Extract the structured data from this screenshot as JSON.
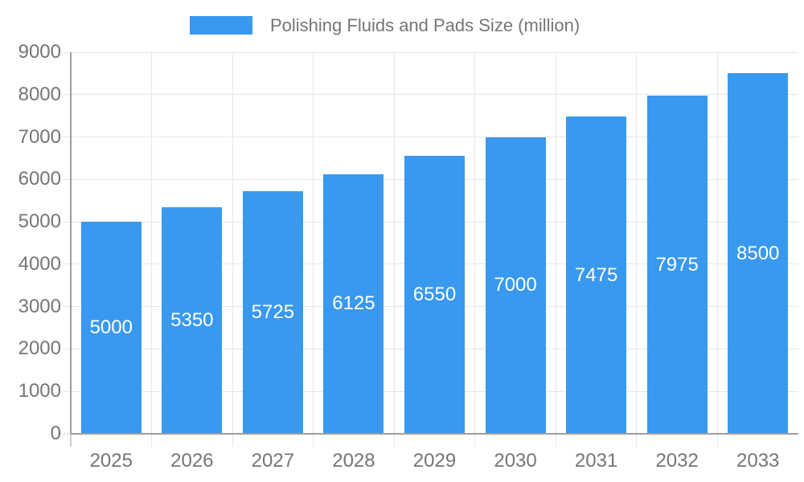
{
  "chart_data": {
    "type": "bar",
    "title": "",
    "xlabel": "",
    "ylabel": "",
    "legend": {
      "position": "top",
      "label": "Polishing Fluids and Pads Size (million)"
    },
    "categories": [
      "2025",
      "2026",
      "2027",
      "2028",
      "2029",
      "2030",
      "2031",
      "2032",
      "2033"
    ],
    "series": [
      {
        "name": "Polishing Fluids and Pads Size (million)",
        "values": [
          5000,
          5350,
          5725,
          6125,
          6550,
          7000,
          7475,
          7975,
          8500
        ]
      }
    ],
    "data_labels": [
      "5000",
      "5350",
      "5725",
      "6125",
      "6550",
      "7000",
      "7475",
      "7975",
      "8500"
    ],
    "ylim": [
      0,
      9000
    ],
    "yticks": [
      0,
      1000,
      2000,
      3000,
      4000,
      5000,
      6000,
      7000,
      8000,
      9000
    ],
    "grid": "horizontal gridlines at every 1000; vertical gridlines at category boundaries",
    "colors": {
      "bar": "#3999EE",
      "bar_label_text": "#ffffff",
      "axis_text": "#757575",
      "legend_text": "#757575",
      "gridline": "#e6e6e6",
      "axis_line": "#9e9e9e",
      "axis_line_light": "#cccccc",
      "background": "#ffffff"
    }
  }
}
